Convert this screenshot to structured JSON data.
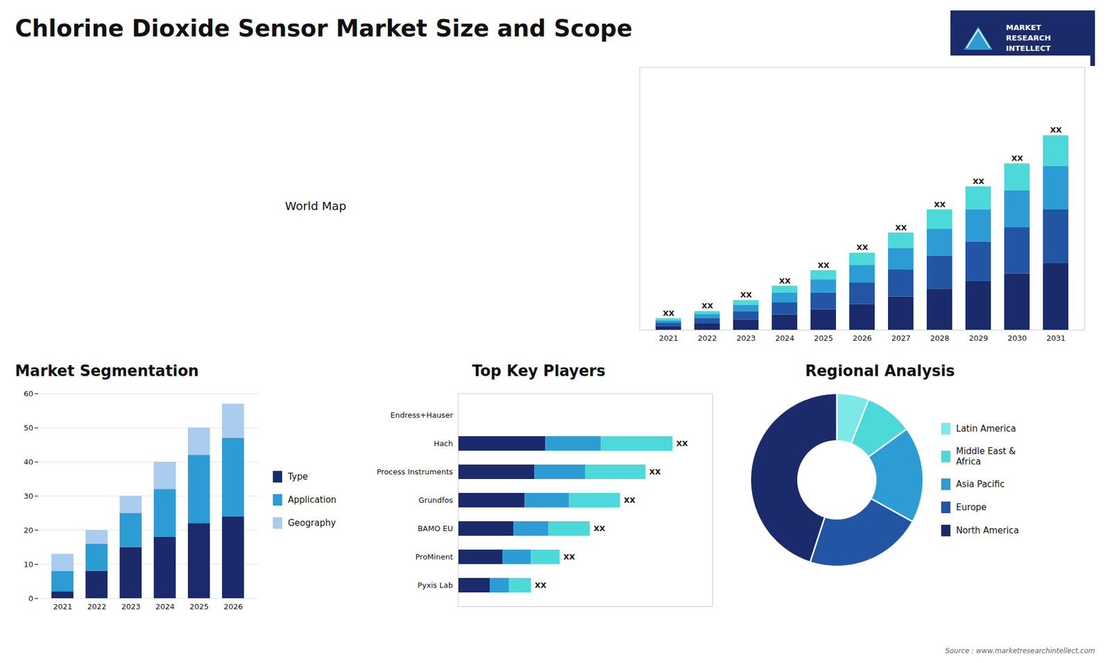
{
  "title": "Chlorine Dioxide Sensor Market Size and Scope",
  "caption": "Source : www.marketresearchintellect.com",
  "logo_text": [
    "MARKET",
    "RESEARCH",
    "INTELLECT"
  ],
  "annotations": [
    "World Map"
  ],
  "chart_data": [
    {
      "type": "bar",
      "stacked": true,
      "categories": [
        "2021",
        "2022",
        "2023",
        "2024",
        "2025",
        "2026",
        "2027",
        "2028",
        "2029",
        "2030",
        "2031"
      ],
      "series": [
        {
          "color": "#1b2a6b",
          "values": [
            1.5,
            2.5,
            4,
            6,
            8,
            10,
            13,
            16,
            19,
            22,
            26
          ]
        },
        {
          "color": "#2255a4",
          "values": [
            1.2,
            2.0,
            3.2,
            4.8,
            6.5,
            8.5,
            10.5,
            13,
            15.5,
            18,
            21
          ]
        },
        {
          "color": "#2e9cd4",
          "values": [
            1.0,
            1.6,
            2.6,
            3.8,
            5.2,
            6.8,
            8.5,
            10.5,
            12.5,
            14.5,
            17
          ]
        },
        {
          "color": "#4dd9d9",
          "values": [
            0.8,
            1.2,
            1.8,
            2.6,
            3.6,
            4.8,
            6.0,
            7.5,
            9.0,
            10.5,
            12
          ]
        }
      ],
      "ylim": [
        0,
        102.6
      ],
      "tick_labels": "x",
      "value_labels": [
        "XX",
        "XX",
        "XX",
        "XX",
        "XX",
        "XX",
        "XX",
        "XX",
        "XX",
        "XX",
        "XX"
      ]
    },
    {
      "type": "bar",
      "title": "Market Segmentation",
      "stacked": true,
      "categories": [
        "2021",
        "2022",
        "2023",
        "2024",
        "2025",
        "2026"
      ],
      "series": [
        {
          "name": "Type",
          "color": "#1b2a6b",
          "values": [
            2,
            8,
            15,
            18,
            22,
            24
          ]
        },
        {
          "name": "Application",
          "color": "#2e9cd4",
          "values": [
            6,
            8,
            10,
            14,
            20,
            23
          ]
        },
        {
          "name": "Geography",
          "color": "#aaccee",
          "values": [
            5,
            4,
            5,
            8,
            8,
            10
          ]
        }
      ],
      "ylim": [
        0,
        60
      ],
      "yticks": [
        0,
        10,
        20,
        30,
        40,
        50,
        60
      ],
      "grid": true,
      "legend": "right"
    },
    {
      "type": "bar",
      "title": "Top Key Players",
      "orientation": "horizontal",
      "stacked": true,
      "categories": [
        "Endress+Hauser",
        "Hach",
        "Process Instruments",
        "Grundfos",
        "BAMO EU",
        "ProMinent",
        "Pyxis Lab"
      ],
      "series": [
        {
          "color": "#1b2a6b",
          "values": [
            0,
            5.5,
            4.8,
            4.2,
            3.5,
            2.8,
            2.0
          ]
        },
        {
          "color": "#2e9cd4",
          "values": [
            0,
            3.5,
            3.2,
            2.8,
            2.2,
            1.8,
            1.2
          ]
        },
        {
          "color": "#4dd9d9",
          "values": [
            0,
            4.5,
            3.8,
            3.2,
            2.6,
            1.8,
            1.4
          ]
        }
      ],
      "xlim": [
        0,
        16
      ],
      "tick_labels": "y",
      "value_labels": [
        null,
        "XX",
        "XX",
        "XX",
        "XX",
        "XX",
        "XX"
      ]
    },
    {
      "type": "donut",
      "title": "Regional Analysis",
      "labels": [
        "Latin America",
        "Middle East &\nAfrica",
        "Asia Pacific",
        "Europe",
        "North America"
      ],
      "values": [
        6,
        9,
        18,
        22,
        45
      ],
      "colors": [
        "#7de8e8",
        "#4dd9d9",
        "#2e9cd4",
        "#2255a4",
        "#1b2a6b"
      ],
      "legend": "right"
    }
  ]
}
